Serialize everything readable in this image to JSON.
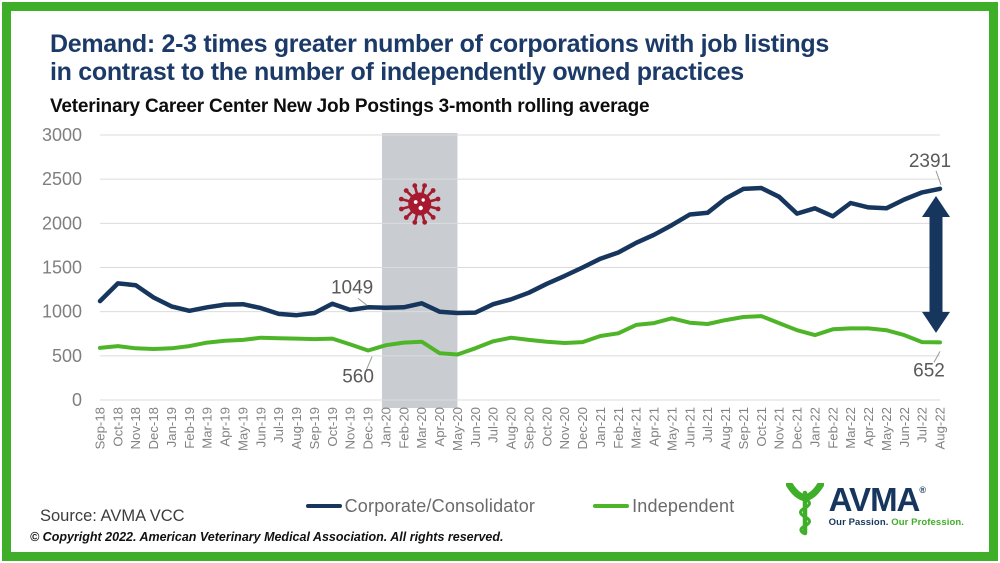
{
  "frame": {
    "border_color": "#3FAE29"
  },
  "header": {
    "title_line1": "Demand: 2-3 times greater number of corporations with job listings",
    "title_line2": "in contrast to the number of independently owned practices",
    "subtitle": "Veterinary Career Center New Job Postings 3-month rolling average"
  },
  "chart_data": {
    "type": "line",
    "title": "Veterinary Career Center New Job Postings 3-month rolling average",
    "categories": [
      "Sep-18",
      "Oct-18",
      "Nov-18",
      "Dec-18",
      "Jan-19",
      "Feb-19",
      "Mar-19",
      "Apr-19",
      "May-19",
      "Jun-19",
      "Jul-19",
      "Aug-19",
      "Sep-19",
      "Oct-19",
      "Nov-19",
      "Dec-19",
      "Jan-20",
      "Feb-20",
      "Mar-20",
      "Apr-20",
      "May-20",
      "Jun-20",
      "Jul-20",
      "Aug-20",
      "Sep-20",
      "Oct-20",
      "Nov-20",
      "Dec-20",
      "Jan-21",
      "Feb-21",
      "Mar-21",
      "Apr-21",
      "May-21",
      "Jun-21",
      "Jul-21",
      "Aug-21",
      "Sep-21",
      "Oct-21",
      "Nov-21",
      "Dec-21",
      "Jan-22",
      "Feb-22",
      "Mar-22",
      "Apr-22",
      "May-22",
      "Jun-22",
      "Jul-22",
      "Aug-22"
    ],
    "series": [
      {
        "name": "Corporate/Consolidator",
        "color": "#17365D",
        "values": [
          1120,
          1320,
          1300,
          1160,
          1060,
          1010,
          1050,
          1080,
          1085,
          1040,
          975,
          960,
          985,
          1090,
          1020,
          1049,
          1045,
          1050,
          1095,
          1000,
          985,
          990,
          1085,
          1140,
          1215,
          1315,
          1405,
          1500,
          1600,
          1670,
          1780,
          1870,
          1980,
          2100,
          2120,
          2280,
          2390,
          2400,
          2300,
          2110,
          2170,
          2080,
          2230,
          2180,
          2170,
          2270,
          2350,
          2391
        ]
      },
      {
        "name": "Independent",
        "color": "#4EB528",
        "values": [
          590,
          610,
          585,
          577,
          585,
          610,
          650,
          670,
          680,
          705,
          700,
          695,
          690,
          695,
          630,
          560,
          620,
          650,
          660,
          530,
          515,
          585,
          665,
          705,
          680,
          660,
          645,
          655,
          725,
          755,
          850,
          870,
          925,
          875,
          860,
          905,
          940,
          950,
          870,
          790,
          735,
          800,
          810,
          810,
          790,
          735,
          655,
          652
        ]
      }
    ],
    "ylim": [
      0,
      3000
    ],
    "ytick_step": 500,
    "grid": true,
    "legend_position": "bottom",
    "covid_band": {
      "start": "Jan-20",
      "end": "May-20",
      "color": "#C9CDD2",
      "icon": "virus-icon",
      "icon_color": "#A6192E"
    },
    "annotations": [
      {
        "text": "1049",
        "category": "Dec-19",
        "series": "Corporate/Consolidator",
        "placement": "above-left"
      },
      {
        "text": "560",
        "category": "Dec-19",
        "series": "Independent",
        "placement": "below-left"
      },
      {
        "text": "2391",
        "category": "Aug-22",
        "series": "Corporate/Consolidator",
        "placement": "above"
      },
      {
        "text": "652",
        "category": "Aug-22",
        "series": "Independent",
        "placement": "below"
      }
    ],
    "gap_arrow": {
      "category": "Aug-22",
      "from_value": 760,
      "to_value": 2310,
      "color": "#17365D"
    }
  },
  "legend": {
    "items": [
      {
        "label": "Corporate/Consolidator",
        "color": "#17365D"
      },
      {
        "label": "Independent",
        "color": "#4EB528"
      }
    ]
  },
  "footer": {
    "source": "Source: AVMA VCC",
    "copyright": "© Copyright 2022. American Veterinary Medical Association. All rights reserved."
  },
  "logo": {
    "name": "AVMA",
    "registered": "®",
    "tagline_part1": "Our Passion.",
    "tagline_part2": " Our Profession.",
    "navy": "#17365D",
    "green": "#3FAE29"
  }
}
